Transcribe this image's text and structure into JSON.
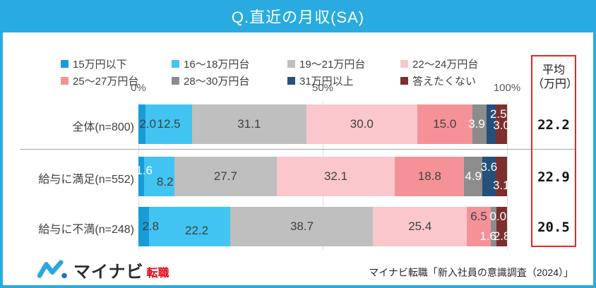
{
  "header": {
    "title": "Q.直近の月収(SA)",
    "accent_color": "#29ABE2"
  },
  "chart_data": {
    "type": "bar",
    "stacked": true,
    "orientation": "horizontal",
    "title": "Q.直近の月収(SA)",
    "x_ticks": [
      "0%",
      "50%",
      "100%"
    ],
    "x_range": [
      0,
      100
    ],
    "grid": true,
    "legend_position": "top",
    "categories": [
      "全体(n=800)",
      "給与に満足(n=552)",
      "給与に不満(n=248)"
    ],
    "series": [
      {
        "name": "15万円以下",
        "color": "#189CD8",
        "values": [
          2.0,
          1.6,
          2.8
        ]
      },
      {
        "name": "16〜18万円台",
        "color": "#41C4F1",
        "values": [
          12.5,
          8.2,
          22.2
        ]
      },
      {
        "name": "19〜21万円台",
        "color": "#BFBFBF",
        "values": [
          31.1,
          27.7,
          38.7
        ]
      },
      {
        "name": "22〜24万円台",
        "color": "#F9C7CC",
        "values": [
          30.0,
          32.1,
          25.4
        ]
      },
      {
        "name": "25〜27万円台",
        "color": "#F59298",
        "values": [
          15.0,
          18.8,
          6.5
        ]
      },
      {
        "name": "28〜30万円台",
        "color": "#8C8C8C",
        "values": [
          3.9,
          4.9,
          1.6
        ]
      },
      {
        "name": "31万円以上",
        "color": "#24507B",
        "values": [
          2.5,
          3.6,
          0.0
        ]
      },
      {
        "name": "答えたくない",
        "color": "#7C2F2F",
        "values": [
          3.0,
          3.1,
          2.8
        ]
      }
    ],
    "label_styles": [
      [
        [
          "d",
          0,
          8
        ],
        [
          "d",
          0,
          0
        ],
        [
          "d",
          0,
          0
        ],
        [
          "d",
          0,
          0
        ],
        [
          "d",
          0,
          0
        ],
        [
          "w",
          0,
          -4
        ],
        [
          "w",
          -14,
          10
        ],
        [
          "w",
          2,
          0
        ]
      ],
      [
        [
          "w",
          -8,
          4
        ],
        [
          "d",
          8,
          8
        ],
        [
          "d",
          0,
          0
        ],
        [
          "d",
          0,
          0
        ],
        [
          "d",
          0,
          0
        ],
        [
          "w",
          0,
          0
        ],
        [
          "w",
          -13,
          0
        ],
        [
          "w",
          13,
          0
        ]
      ],
      [
        [
          "d",
          0,
          10
        ],
        [
          "d",
          6,
          10
        ],
        [
          "d",
          0,
          0
        ],
        [
          "d",
          0,
          0
        ],
        [
          "d",
          -14,
          0
        ],
        [
          "w",
          14,
          -8
        ],
        [
          "w",
          -14,
          2
        ],
        [
          "w",
          14,
          0
        ]
      ]
    ],
    "averages": {
      "header_line1": "平均",
      "header_line2": "（万円）",
      "values": [
        "22.2",
        "22.9",
        "20.5"
      ]
    }
  },
  "footer": {
    "logo_brand": "マイナビ",
    "logo_suffix": "転職",
    "source": "マイナビ転職「新入社員の意識調査（2024）」"
  }
}
